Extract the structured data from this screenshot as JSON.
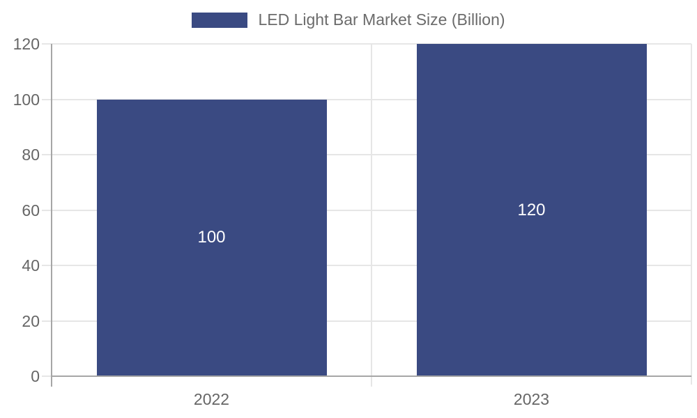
{
  "chart_data": {
    "type": "bar",
    "title": "LED Light Bar Market Size (Billion)",
    "categories": [
      "2022",
      "2023"
    ],
    "series": [
      {
        "name": "LED Light Bar Market Size (Billion)",
        "values": [
          100,
          120
        ]
      }
    ],
    "data_labels": [
      "100",
      "120"
    ],
    "ylim": [
      0,
      120
    ],
    "yticks": [
      0,
      20,
      40,
      60,
      80,
      100,
      120
    ],
    "xlabel": "",
    "ylabel": "",
    "grid": true,
    "legend_position": "top-center",
    "colors": {
      "bar": "#3A4A82",
      "gridline": "#e6e6e6",
      "axis": "#a6a6a6",
      "tick_text": "#666666",
      "legend_text": "#6b6b6b",
      "data_label": "#ffffff",
      "background": "#ffffff"
    }
  }
}
